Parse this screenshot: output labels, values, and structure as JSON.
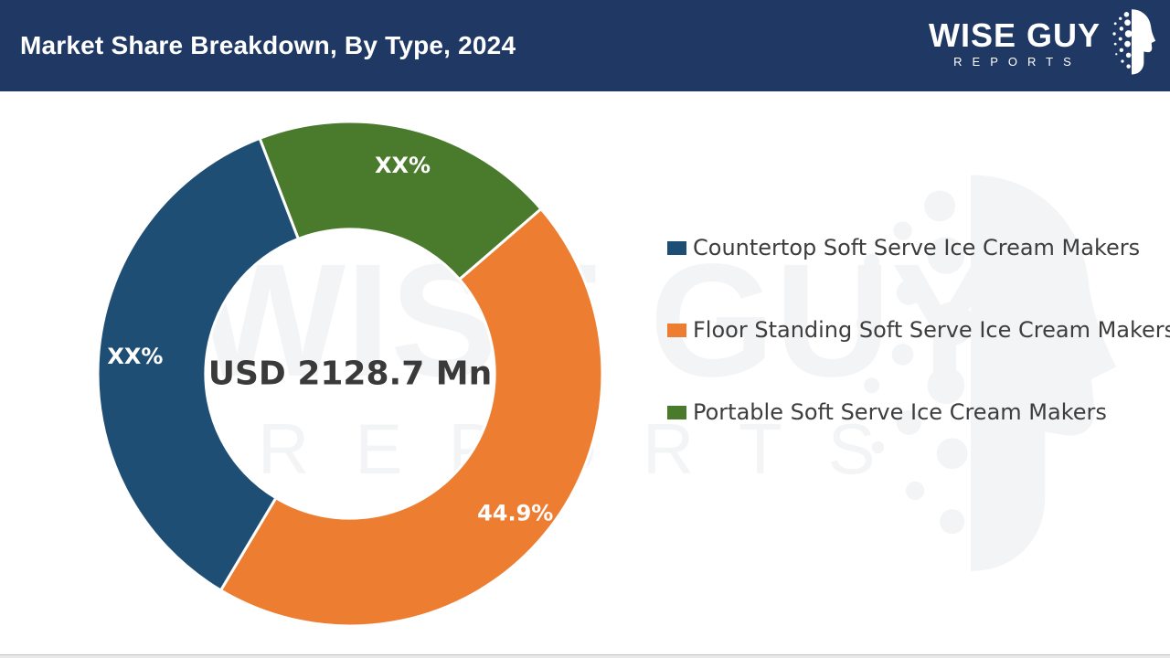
{
  "header": {
    "title": "Market Share Breakdown, By Type, 2024",
    "logo": {
      "line1": "WISE GUY",
      "line2": "REPORTS"
    }
  },
  "watermark": {
    "line1": "WISE GUY",
    "line2": "REPORTS"
  },
  "chart_data": {
    "type": "donut",
    "title": "Market Share Breakdown, By Type, 2024",
    "center_label": "USD 2128.7 Mn",
    "start_angle_deg": -111,
    "inner_radius_ratio": 0.573,
    "label_radius_ratio": 0.855,
    "slices": [
      {
        "label": "Portable Soft Serve Ice Cream Makers",
        "display_value": "XX%",
        "value_pct": 19.5,
        "color": "#4a7a2b"
      },
      {
        "label": "Floor Standing Soft Serve Ice Cream Makers",
        "display_value": "44.9%",
        "value_pct": 44.9,
        "color": "#ed7d31"
      },
      {
        "label": "Countertop Soft Serve Ice Cream Makers",
        "display_value": "XX%",
        "value_pct": 35.6,
        "color": "#1f4e74"
      }
    ]
  },
  "legend": {
    "items": [
      {
        "label": "Countertop Soft Serve Ice Cream Makers",
        "color": "#1f4e74"
      },
      {
        "label": "Floor Standing Soft Serve Ice Cream Makers",
        "color": "#ed7d31"
      },
      {
        "label": "Portable Soft Serve Ice Cream Makers",
        "color": "#4a7a2b"
      }
    ]
  },
  "colors": {
    "header_bg": "#1f3864",
    "blue": "#1f4e74",
    "orange": "#ed7d31",
    "green": "#4a7a2b",
    "text_dark": "#3a3a3a",
    "watermark": "#f3f4f6"
  }
}
